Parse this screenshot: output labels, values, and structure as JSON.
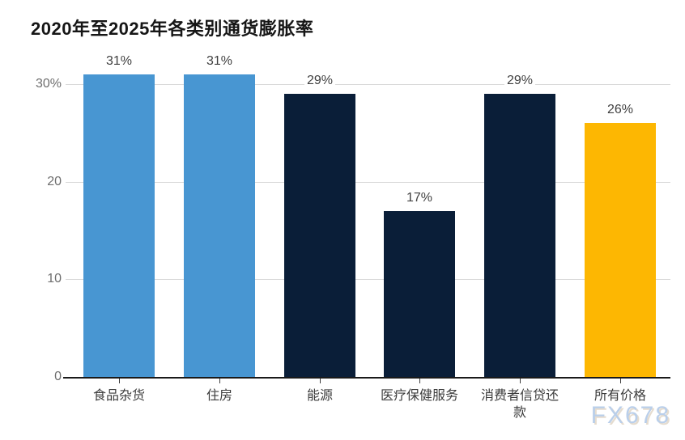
{
  "title": "2020年至2025年各类别通货膨胀率",
  "watermark": "FX678",
  "colors": {
    "blue": "#4896d2",
    "navy": "#0a1e38",
    "orange": "#fdb702",
    "gridline": "#d9d9d9",
    "axis_line": "#1a1a1a",
    "value_label": "#3f3f3f",
    "category_label": "#3c3c3c",
    "y_tick_label": "#6e6e6e",
    "watermark": "#b7cde9"
  },
  "chart_data": {
    "type": "bar",
    "title": "2020年至2025年各类别通货膨胀率",
    "categories": [
      "食品杂货",
      "住房",
      "能源",
      "医疗保健服务",
      "消费者信贷还款",
      "所有价格"
    ],
    "values": [
      31,
      31,
      29,
      17,
      29,
      26
    ],
    "value_labels": [
      "31%",
      "31%",
      "29%",
      "17%",
      "29%",
      "26%"
    ],
    "bar_colors": [
      "#4896d2",
      "#4896d2",
      "#0a1e38",
      "#0a1e38",
      "#0a1e38",
      "#fdb702"
    ],
    "xlabel": "",
    "ylabel": "",
    "y_axis": {
      "ticks": [
        0,
        10,
        20,
        30
      ],
      "tick_labels": [
        "0",
        "10",
        "20",
        "30%"
      ],
      "range": [
        0,
        33
      ]
    },
    "grid": "horizontal",
    "legend": "none"
  }
}
